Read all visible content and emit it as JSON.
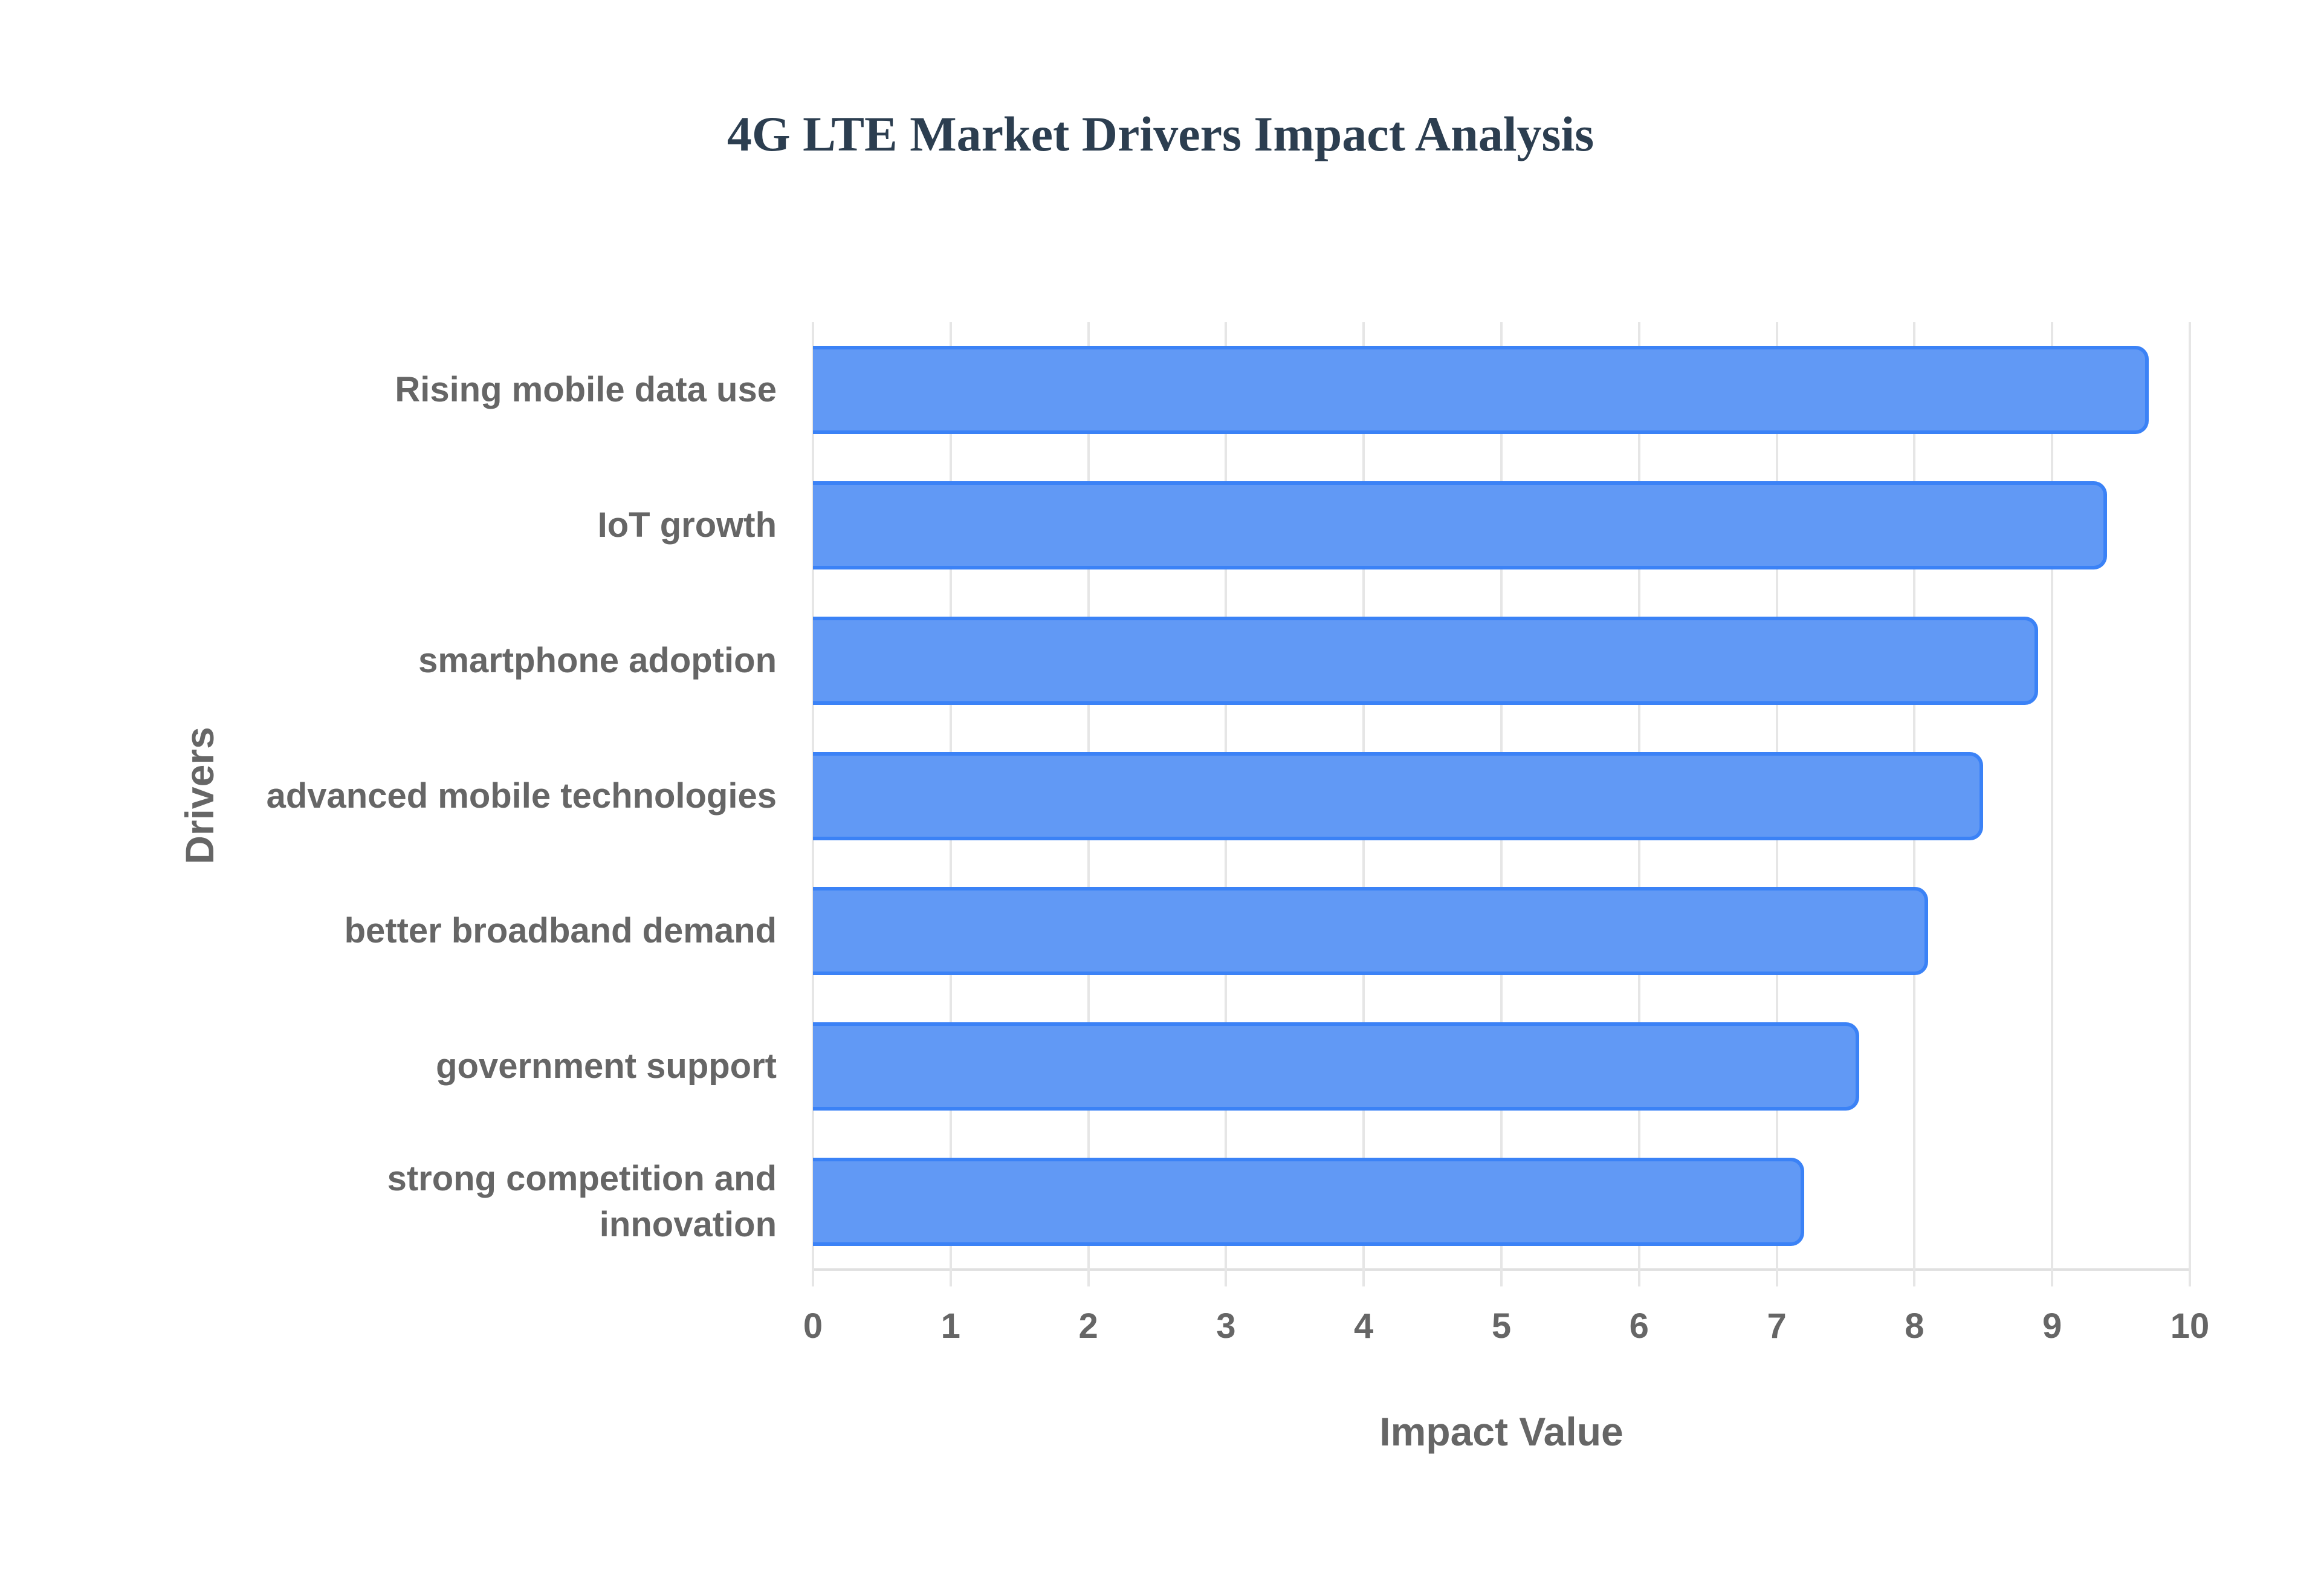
{
  "chart_data": {
    "type": "bar",
    "orientation": "horizontal",
    "title": "4G LTE Market Drivers Impact Analysis",
    "xlabel": "Impact Value",
    "ylabel": "Drivers",
    "xlim": [
      0,
      10
    ],
    "x_ticks": [
      "0",
      "1",
      "2",
      "3",
      "4",
      "5",
      "6",
      "7",
      "8",
      "9",
      "10"
    ],
    "grid": true,
    "legend": null,
    "categories": [
      "Rising mobile data use",
      "IoT growth",
      "smartphone adoption",
      "advanced mobile technologies",
      "better broadband demand",
      "government support",
      "strong competition and innovation"
    ],
    "values": [
      9.7,
      9.4,
      8.9,
      8.5,
      8.1,
      7.6,
      7.2
    ],
    "bar_color": "#6199f5",
    "bar_border_color": "#3b82f6"
  },
  "labels": {
    "title": "4G LTE Market Drivers Impact Analysis",
    "xlabel": "Impact Value",
    "ylabel": "Drivers",
    "categories": [
      [
        "Rising mobile data use"
      ],
      [
        "IoT growth"
      ],
      [
        "smartphone adoption"
      ],
      [
        "advanced mobile technologies"
      ],
      [
        "better broadband demand"
      ],
      [
        "government support"
      ],
      [
        "strong competition and",
        "innovation"
      ]
    ],
    "ticks": [
      "0",
      "1",
      "2",
      "3",
      "4",
      "5",
      "6",
      "7",
      "8",
      "9",
      "10"
    ]
  }
}
